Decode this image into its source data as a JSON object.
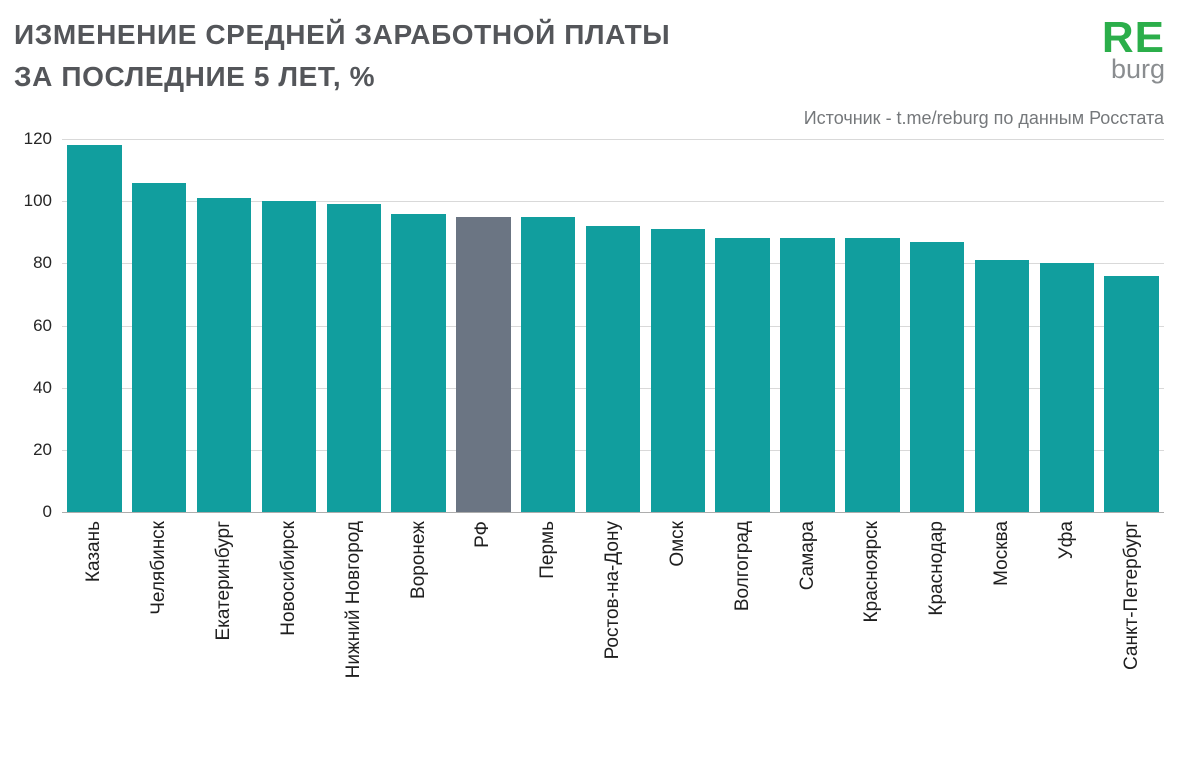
{
  "header": {
    "title_line1": "ИЗМЕНЕНИЕ СРЕДНЕЙ ЗАРАБОТНОЙ ПЛАТЫ",
    "title_line2": "ЗА ПОСЛЕДНИЕ 5 ЛЕТ, %",
    "logo_re": "RE",
    "logo_burg": "burg",
    "source": "Источник - t.me/reburg по данным Росстата"
  },
  "colors": {
    "bar": "#119E9E",
    "bar_highlight": "#6B7583",
    "grid": "#D9D9D9",
    "title": "#54565A",
    "logo_green": "#2BAE4A",
    "logo_gray": "#8A8D90"
  },
  "chart_data": {
    "type": "bar",
    "title": "ИЗМЕНЕНИЕ СРЕДНЕЙ ЗАРАБОТНОЙ ПЛАТЫ ЗА ПОСЛЕДНИЕ 5 ЛЕТ, %",
    "source": "Источник - t.me/reburg по данным Росстата",
    "categories": [
      "Казань",
      "Челябинск",
      "Екатеринбург",
      "Новосибирск",
      "Нижний Новгород",
      "Воронеж",
      "РФ",
      "Пермь",
      "Ростов-на-Дону",
      "Омск",
      "Волгоград",
      "Самара",
      "Красноярск",
      "Краснодар",
      "Москва",
      "Уфа",
      "Санкт-Петербург"
    ],
    "values": [
      118,
      106,
      101,
      100,
      99,
      96,
      95,
      95,
      92,
      91,
      88,
      88,
      88,
      87,
      81,
      80,
      76
    ],
    "highlight_category": "РФ",
    "xlabel": "",
    "ylabel": "",
    "ylim": [
      0,
      120
    ],
    "yticks": [
      0,
      20,
      40,
      60,
      80,
      100,
      120
    ],
    "grid": "horizontal",
    "legend": "none"
  }
}
